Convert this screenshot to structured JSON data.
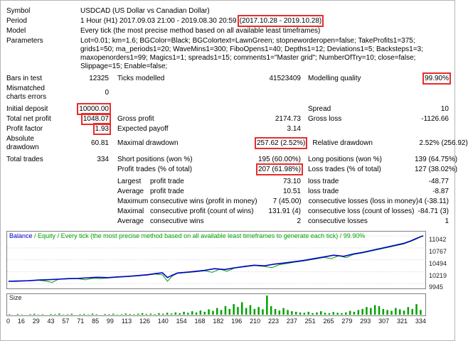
{
  "colors": {
    "highlight": "#e82c2c",
    "balance": "#0000cc",
    "equity": "#00a000",
    "bars": "#00a000",
    "grid": "#cfcfcf"
  },
  "report": {
    "rows": [
      {
        "label": "Symbol",
        "value": "USDCAD (US Dollar vs Canadian Dollar)"
      },
      {
        "label": "Period",
        "value": "1 Hour (H1) 2017.09.03 21:00 - 2019.08.30 20:59",
        "value_boxed": "(2017.10.28 - 2019.10.28)"
      },
      {
        "label": "Model",
        "value": "Every tick (the most precise method based on all available least timeframes)"
      },
      {
        "label": "Parameters",
        "value": "Lot=0.01; km=1.6; BGColor=Black; BGColortext=LawnGreen; stopneworderopen=false; TakeProfits1=375; grids1=50; ma_periods1=20; WaveMins1=300; FiboOpens1=40; Depths1=12; Deviations1=5; Backsteps1=3; maxopenorders1=99; Magics1=1; spreads1=15; comments1=\"Master grid\"; NumberOfTry=10; close=false; Slippage=15; Enable=false;"
      },
      {
        "label": "Bars in test",
        "v1": "12325",
        "ml": "Ticks modelled",
        "mv": "41523409",
        "rl": "Modelling quality",
        "rv": "99.90%",
        "rv_hl": true
      },
      {
        "label": "Mismatched charts errors",
        "v1": "0"
      },
      {
        "label": "Initial deposit",
        "v1": "10000.00",
        "v1_hl": true,
        "rl": "Spread",
        "rv": "10"
      },
      {
        "label": "Total net profit",
        "v1": "1048.07",
        "v1_hl": true,
        "ml": "Gross profit",
        "mv": "2174.73",
        "rl": "Gross loss",
        "rv": "-1126.66"
      },
      {
        "label": "Profit factor",
        "v1": "1.93",
        "v1_hl": true,
        "ml": "Expected payoff",
        "mv": "3.14"
      },
      {
        "label": "Absolute drawdown",
        "v1": "60.81",
        "ml": "Maximal drawdown",
        "mv": "257.62 (2.52%)",
        "mv_hl": true,
        "rl": "Relative drawdown",
        "rv": "2.52% (256.92)"
      },
      {
        "label": "Total trades",
        "v1": "334",
        "ml": "Short positions (won %)",
        "mv": "195 (60.00%)",
        "rl": "Long positions (won %)",
        "rv": "139 (64.75%)"
      },
      {
        "ml": "Profit trades (% of total)",
        "mv": "207 (61.98%)",
        "mv_hl": true,
        "rl": "Loss trades (% of total)",
        "rv": "127 (38.02%)"
      },
      {
        "prefix": "Largest",
        "ml": "profit trade",
        "mv": "73.10",
        "rl": "loss trade",
        "rv": "-48.77"
      },
      {
        "prefix": "Average",
        "ml": "profit trade",
        "mv": "10.51",
        "rl": "loss trade",
        "rv": "-8.87"
      },
      {
        "prefix": "Maximum",
        "ml": "consecutive wins (profit in money)",
        "mv": "7 (45.00)",
        "rl": "consecutive losses (loss in money)",
        "rv": "4 (-38.11)"
      },
      {
        "prefix": "Maximal",
        "ml": "consecutive profit (count of wins)",
        "mv": "131.91 (4)",
        "rl": "consecutive loss (count of losses)",
        "rv": "-84.71 (3)"
      },
      {
        "prefix": "Average",
        "ml": "consecutive wins",
        "mv": "2",
        "rl": "consecutive losses",
        "rv": "1"
      }
    ]
  },
  "chart_data": [
    {
      "type": "line",
      "legend_balance": "Balance",
      "legend_sep": " / ",
      "legend_equity": "Equity",
      "legend_desc": " / Every tick (the most precise method based on all available least timeframes to generate each tick) / 99.90%",
      "y_ticks": [
        11042,
        10767,
        10494,
        10219,
        9945
      ],
      "x_ticks": [
        "0",
        "16",
        "29",
        "43",
        "57",
        "71",
        "85",
        "99",
        "113",
        "126",
        "140",
        "154",
        "168",
        "182",
        "196",
        "210",
        "223",
        "237",
        "251",
        "265",
        "279",
        "293",
        "307",
        "321",
        "334"
      ],
      "ylim": [
        9900,
        11095
      ],
      "xlim": [
        0,
        334
      ],
      "legend_position": "top-left",
      "grid": true,
      "series": [
        {
          "name": "Equity",
          "color": "#00a000",
          "x": [
            0,
            6,
            12,
            18,
            24,
            30,
            35,
            40,
            48,
            56,
            62,
            68,
            74,
            80,
            88,
            96,
            104,
            112,
            118,
            124,
            128,
            132,
            136,
            142,
            150,
            158,
            164,
            170,
            176,
            182,
            190,
            198,
            206,
            212,
            218,
            224,
            230,
            238,
            246,
            254,
            260,
            266,
            272,
            278,
            286,
            294,
            302,
            310,
            318,
            324,
            328,
            331,
            334
          ],
          "y": [
            10000,
            9995,
            10006,
            10014,
            10022,
            10004,
            9972,
            10042,
            10054,
            10058,
            10032,
            10072,
            10062,
            10076,
            10092,
            10104,
            10122,
            10142,
            10165,
            10150,
            9998,
            10122,
            10182,
            10196,
            10216,
            10242,
            10205,
            10278,
            10232,
            10302,
            10332,
            10362,
            10342,
            10312,
            10382,
            10408,
            10438,
            10468,
            10508,
            10548,
            10522,
            10588,
            10545,
            10618,
            10658,
            10708,
            10758,
            10808,
            10858,
            10918,
            10968,
            11010,
            11048
          ]
        },
        {
          "name": "Balance",
          "color": "#0000cc",
          "x": [
            0,
            8,
            16,
            24,
            32,
            40,
            48,
            56,
            64,
            72,
            80,
            88,
            96,
            104,
            112,
            118,
            124,
            128,
            132,
            136,
            142,
            150,
            158,
            166,
            174,
            182,
            190,
            198,
            206,
            214,
            222,
            230,
            238,
            246,
            254,
            262,
            270,
            278,
            286,
            294,
            302,
            310,
            318,
            324,
            328,
            331,
            334
          ],
          "y": [
            10000,
            10004,
            10012,
            10028,
            10036,
            10048,
            10060,
            10066,
            10080,
            10092,
            10084,
            10100,
            10112,
            10130,
            10150,
            10175,
            10195,
            10085,
            10140,
            10190,
            10205,
            10225,
            10250,
            10290,
            10270,
            10310,
            10340,
            10370,
            10355,
            10395,
            10420,
            10450,
            10480,
            10520,
            10560,
            10600,
            10575,
            10630,
            10670,
            10720,
            10770,
            10820,
            10870,
            10930,
            10980,
            11015,
            11048
          ]
        }
      ]
    },
    {
      "type": "bar",
      "title": "Size",
      "color": "#00a000",
      "values": [
        3,
        0,
        4,
        2,
        0,
        3,
        5,
        2,
        3,
        0,
        4,
        3,
        6,
        2,
        3,
        5,
        0,
        3,
        4,
        2,
        6,
        3,
        0,
        4,
        3,
        5,
        2,
        3,
        6,
        4,
        3,
        5,
        8,
        4,
        6,
        3,
        8,
        5,
        10,
        6,
        12,
        8,
        15,
        10,
        18,
        12,
        22,
        15,
        28,
        20,
        35,
        25,
        45,
        30,
        55,
        40,
        65,
        35,
        50,
        30,
        40,
        28,
        100,
        45,
        30,
        22,
        35,
        25,
        18,
        15,
        12,
        10,
        15,
        8,
        12,
        18,
        10,
        8,
        14,
        10,
        8,
        12,
        20,
        15,
        25,
        30,
        40,
        35,
        50,
        45,
        30,
        25,
        20,
        35,
        28,
        22,
        40,
        30,
        55,
        25
      ]
    }
  ]
}
